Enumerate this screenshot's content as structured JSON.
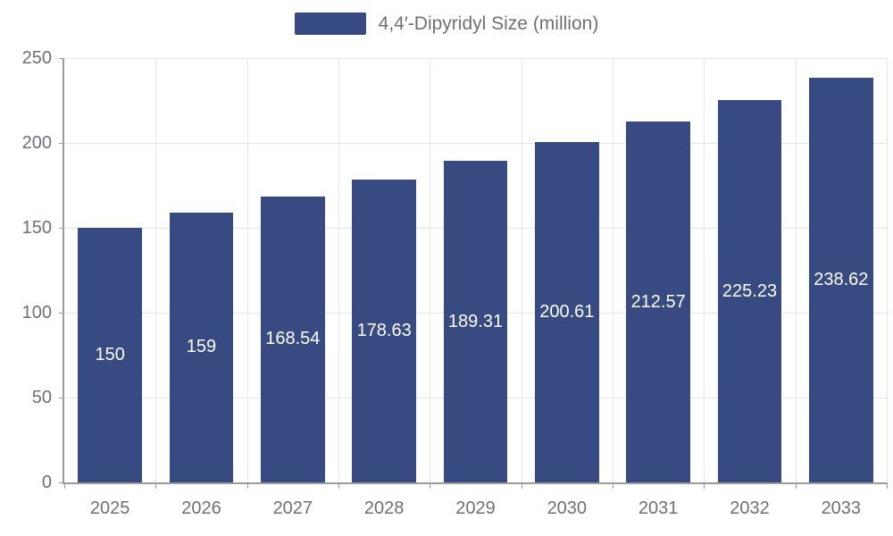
{
  "chart_data": {
    "type": "bar",
    "title": "",
    "legend_position": "top-center",
    "grid": true,
    "categories": [
      "2025",
      "2026",
      "2027",
      "2028",
      "2029",
      "2030",
      "2031",
      "2032",
      "2033"
    ],
    "series": [
      {
        "name": "4,4′-Dipyridyl Size (million)",
        "values": [
          150,
          159,
          168.54,
          178.63,
          189.31,
          200.61,
          212.57,
          225.23,
          238.62
        ]
      }
    ],
    "value_labels": [
      "150",
      "159",
      "168.54",
      "178.63",
      "189.31",
      "200.61",
      "212.57",
      "225.23",
      "238.62"
    ],
    "xlabel": "",
    "ylabel": "",
    "ylim": [
      0,
      250
    ],
    "yticks": [
      0,
      50,
      100,
      150,
      200,
      250
    ],
    "colors": {
      "bar": "#374b82",
      "grid_line": "#e4e4e9",
      "axis_line": "#9b9b9b",
      "axis_label": "#6e7079",
      "value_label": "#ffffff",
      "background": "#ffffff"
    }
  }
}
